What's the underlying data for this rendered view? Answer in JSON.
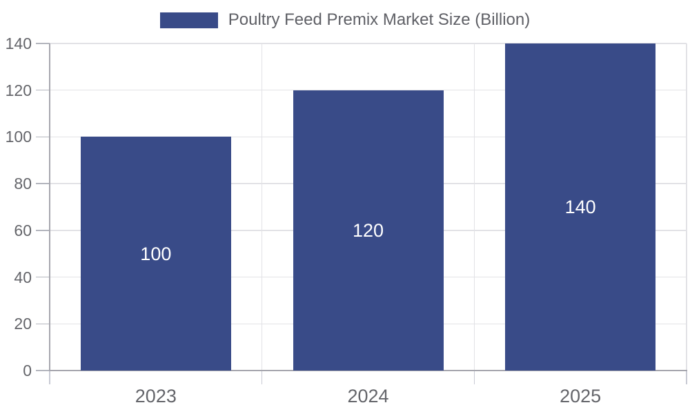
{
  "legend": {
    "label": "Poultry Feed Premix Market Size (Billion)"
  },
  "chart_data": {
    "type": "bar",
    "title": "Poultry Feed Premix Market Size (Billion)",
    "categories": [
      "2023",
      "2024",
      "2025"
    ],
    "series": [
      {
        "name": "Poultry Feed Premix Market Size (Billion)",
        "values": [
          100,
          120,
          140
        ]
      }
    ],
    "value_labels": [
      "100",
      "120",
      "140"
    ],
    "xlabel": "",
    "ylabel": "",
    "ylim": [
      0,
      140
    ],
    "ytick_interval": 20,
    "yticks": [
      0,
      20,
      40,
      60,
      80,
      100,
      120,
      140
    ],
    "grid": true,
    "legend_position": "top",
    "colors": {
      "bar": "#394B88",
      "value_label": "#FFFFFF",
      "axis_label": "#64656A",
      "legend_label": "#5F6066",
      "gridline": "#E2E2E6",
      "axis_line": "#A6A6AE",
      "y_tick": "#B4B6BE",
      "category_tick": "#C8CAD4",
      "background": "#FFFFFF"
    }
  }
}
